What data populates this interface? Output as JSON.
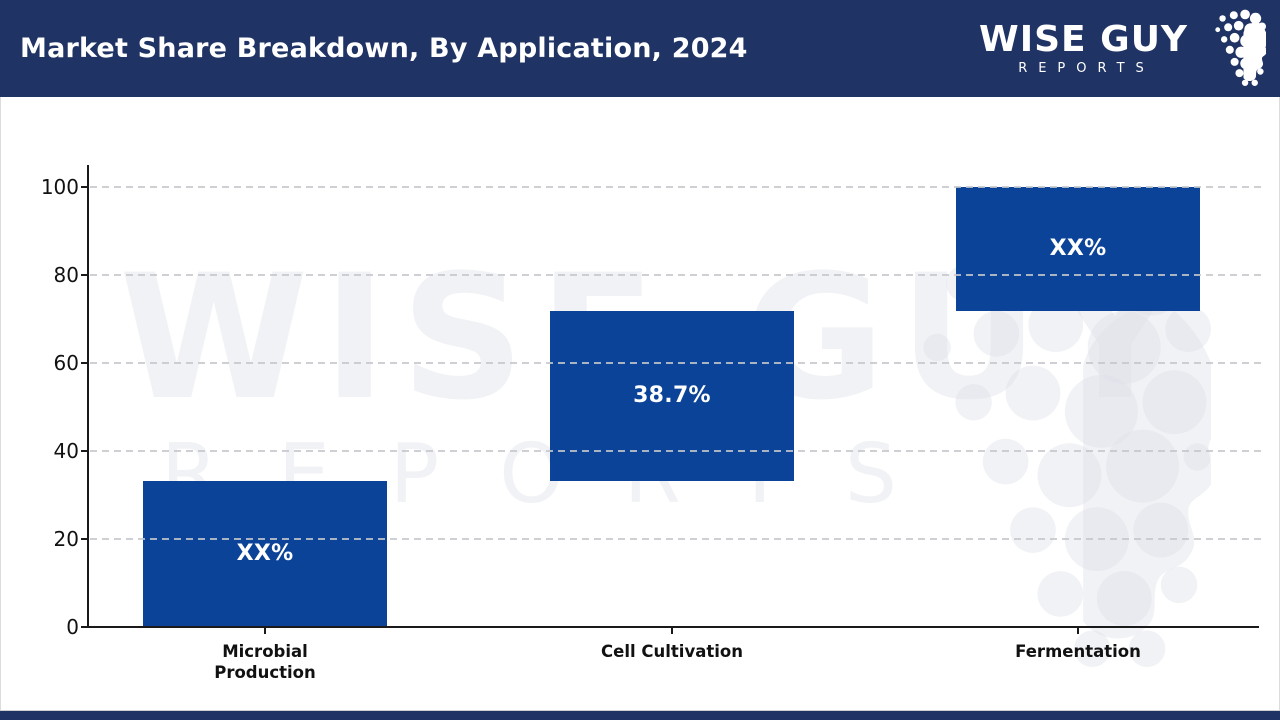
{
  "header": {
    "title": "Market Share Breakdown, By Application, 2024",
    "logo_line1": "WISE GUY",
    "logo_line2": "REPORTS"
  },
  "watermark": {
    "line1": "WISE GUY",
    "line2": "REPORTS"
  },
  "colors": {
    "header_bg": "#1f3365",
    "bar_fill": "#0b4398",
    "grid": "#d9d9d9",
    "axis": "#1a1a1a",
    "bar_label_text": "#ffffff",
    "watermark_gray": "#e8eaef"
  },
  "chart_data": {
    "type": "bar",
    "subtype": "floating-stacked-waterfall",
    "title": "Market Share Breakdown, By Application, 2024",
    "categories": [
      "Microbial Production",
      "Cell Cultivation",
      "Fermentation"
    ],
    "segments": [
      {
        "category": "Microbial Production",
        "start": 0,
        "end": 33.2,
        "value": 33.2,
        "value_label": "XX%"
      },
      {
        "category": "Cell Cultivation",
        "start": 33.2,
        "end": 71.9,
        "value": 38.7,
        "value_label": "38.7%"
      },
      {
        "category": "Fermentation",
        "start": 71.9,
        "end": 100,
        "value": 28.1,
        "value_label": "XX%"
      }
    ],
    "values": [
      33.2,
      38.7,
      28.1
    ],
    "xlabel": "",
    "ylabel": "",
    "ylim": [
      0,
      100
    ],
    "yticks": [
      0,
      20,
      40,
      60,
      80,
      100
    ],
    "grid": "horizontal-dashed",
    "legend": "none",
    "bar_color": "#0b4398"
  }
}
